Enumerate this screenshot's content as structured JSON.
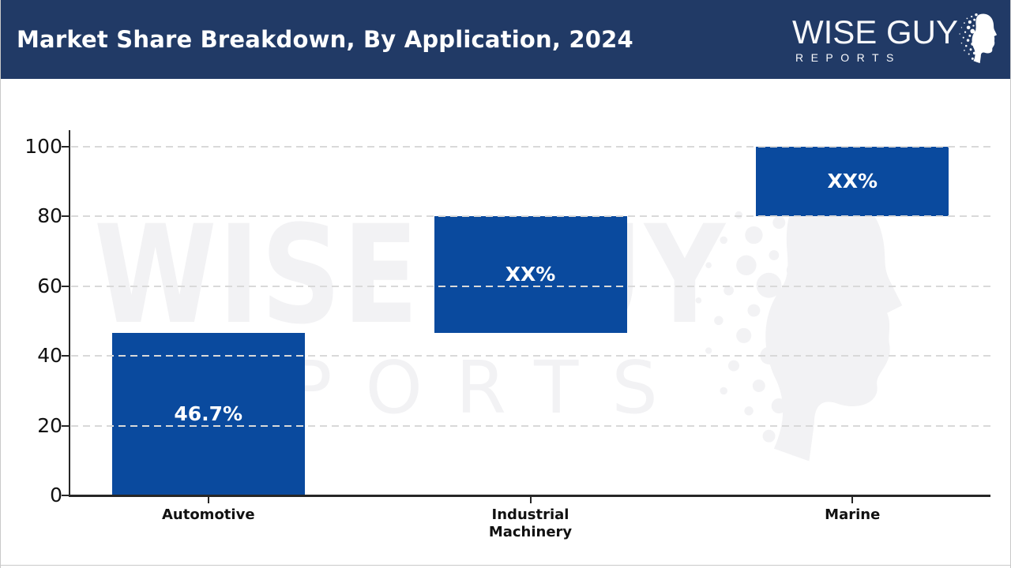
{
  "header": {
    "title": "Market Share Breakdown, By Application, 2024",
    "logo": {
      "line1": "WISE GUY",
      "line2": "REPORTS"
    }
  },
  "watermark": {
    "line1": "WISE GUY",
    "line2": "REPORTS"
  },
  "colors": {
    "header_bg": "#213a66",
    "title_text": "#ffffff",
    "bar": "#0a4a9e",
    "bar_label": "#ffffff",
    "gridline": "#d9d9d9",
    "axis": "#262626",
    "frame_border": "#c9c9c9",
    "watermark": "#f2f2f4"
  },
  "chart_data": {
    "type": "bar",
    "subtype": "waterfall",
    "title": "Market Share Breakdown, By Application, 2024",
    "categories": [
      "Automotive",
      "Industrial Machinery",
      "Marine"
    ],
    "display_categories": [
      "Automotive",
      "Industrial\nMachinery",
      "Marine"
    ],
    "segments": [
      {
        "category": "Automotive",
        "start": 0,
        "end": 46.7,
        "value": 46.7,
        "label": "46.7%"
      },
      {
        "category": "Industrial Machinery",
        "start": 46.7,
        "end": 80,
        "value": 33.3,
        "label": "XX%"
      },
      {
        "category": "Marine",
        "start": 80,
        "end": 100,
        "value": 20,
        "label": "XX%"
      }
    ],
    "ylim": [
      0,
      100
    ],
    "yticks": [
      0,
      20,
      40,
      60,
      80,
      100
    ],
    "grid": "horizontal dashed, drawn above bars",
    "legend": null,
    "xlabel": "",
    "ylabel": ""
  }
}
